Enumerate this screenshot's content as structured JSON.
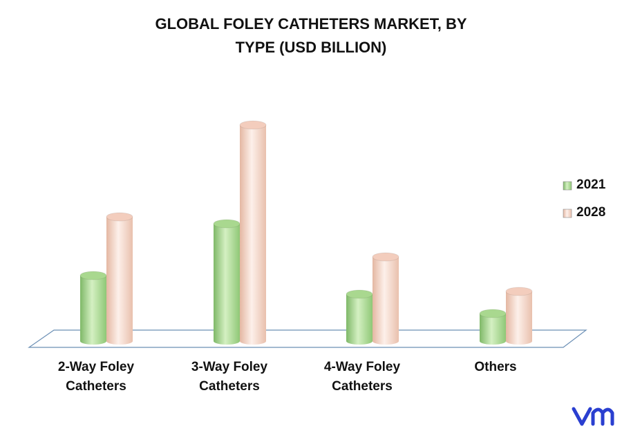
{
  "chart_data": {
    "type": "bar",
    "title": "GLOBAL FOLEY CATHETERS MARKET, BY TYPE (USD BILLION)",
    "categories": [
      "2-Way Foley Catheters",
      "3-Way Foley Catheters",
      "4-Way Foley Catheters",
      "Others"
    ],
    "series": [
      {
        "name": "2021",
        "color": "#a9d88f",
        "values": [
          0.95,
          1.7,
          0.68,
          0.4
        ]
      },
      {
        "name": "2028",
        "color": "#f3cdbd",
        "values": [
          1.8,
          3.13,
          1.22,
          0.72
        ]
      }
    ],
    "legend": "right"
  }
}
